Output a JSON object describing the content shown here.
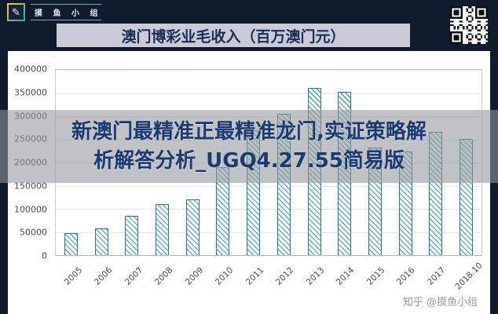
{
  "header": {
    "logo": {
      "glyph": "✎",
      "group_name": "摸 鱼 小 组"
    },
    "title": "澳门博彩业毛收入（百万澳门元）"
  },
  "watermark": {
    "text": "新澳门最精准正最精准龙门,实证策略解\n析解答分析_UGQ4.27.55简易版"
  },
  "footer": {
    "credit": "知乎 @摸鱼小组"
  },
  "chart_data": {
    "type": "bar",
    "title": "澳门博彩业毛收入（百万澳门元）",
    "categories": [
      "2005",
      "2006",
      "2007",
      "2008",
      "2009",
      "2010",
      "2011",
      "2012",
      "2013",
      "2014",
      "2015",
      "2016",
      "2017",
      "2018.10"
    ],
    "values": [
      47000,
      57500,
      84000,
      110000,
      120000,
      189500,
      269000,
      305000,
      361500,
      352500,
      232000,
      223000,
      266000,
      250500
    ],
    "ylim": [
      0,
      400000
    ],
    "yticks": [
      400000,
      350000,
      300000,
      250000,
      200000,
      150000,
      100000,
      50000,
      0
    ],
    "xlabel": "",
    "ylabel": "",
    "grid": true,
    "legend": false,
    "bar_color": "#2a7d7e",
    "bar_fill": "#eef8f7",
    "background": "#ffffff",
    "frame_color": "#101b2e"
  }
}
